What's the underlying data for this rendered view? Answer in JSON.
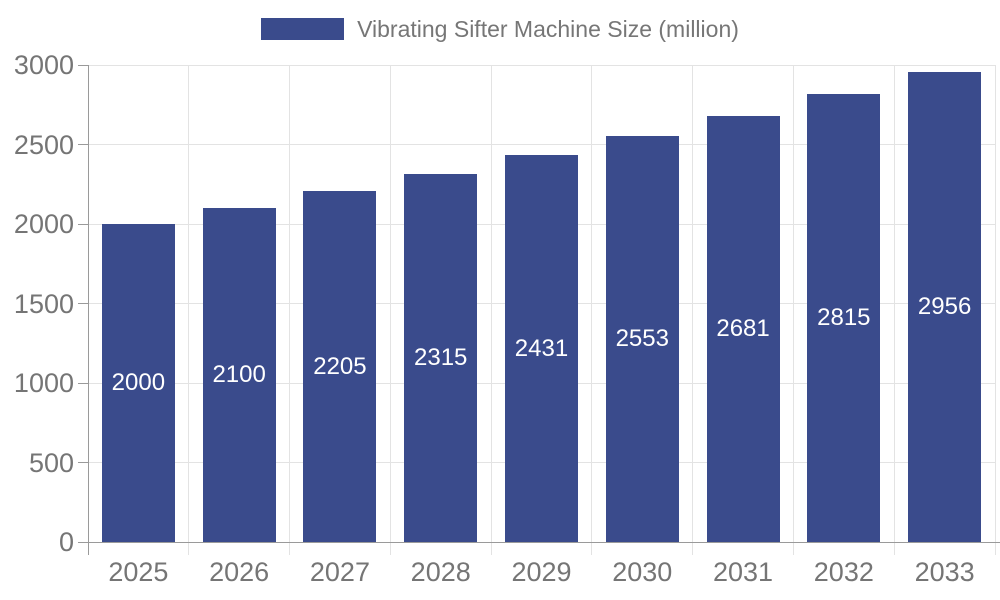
{
  "chart_data": {
    "type": "bar",
    "title": "Vibrating Sifter Machine Size (million)",
    "series_name": "Vibrating Sifter Machine Size (million)",
    "categories": [
      "2025",
      "2026",
      "2027",
      "2028",
      "2029",
      "2030",
      "2031",
      "2032",
      "2033"
    ],
    "values": [
      2000,
      2100,
      2205,
      2315,
      2431,
      2553,
      2681,
      2815,
      2956
    ],
    "value_labels": [
      "2000",
      "2100",
      "2205",
      "2315",
      "2431",
      "2553",
      "2681",
      "2815",
      "2956"
    ],
    "xlabel": "",
    "ylabel": "",
    "ylim": [
      0,
      3000
    ],
    "y_ticks": [
      0,
      500,
      1000,
      1500,
      2000,
      2500,
      3000
    ],
    "y_tick_labels": [
      "0",
      "500",
      "1000",
      "1500",
      "2000",
      "2500",
      "3000"
    ],
    "grid": true,
    "legend_position": "top-center",
    "bar_color": "#3A4B8C",
    "bar_label_color": "#ffffff",
    "axis_text_color": "#757575",
    "legend_text_color": "#767676",
    "axis_line_color": "#9a9a9a",
    "gridline_color": "#e3e3e3",
    "background_color": "#ffffff"
  }
}
